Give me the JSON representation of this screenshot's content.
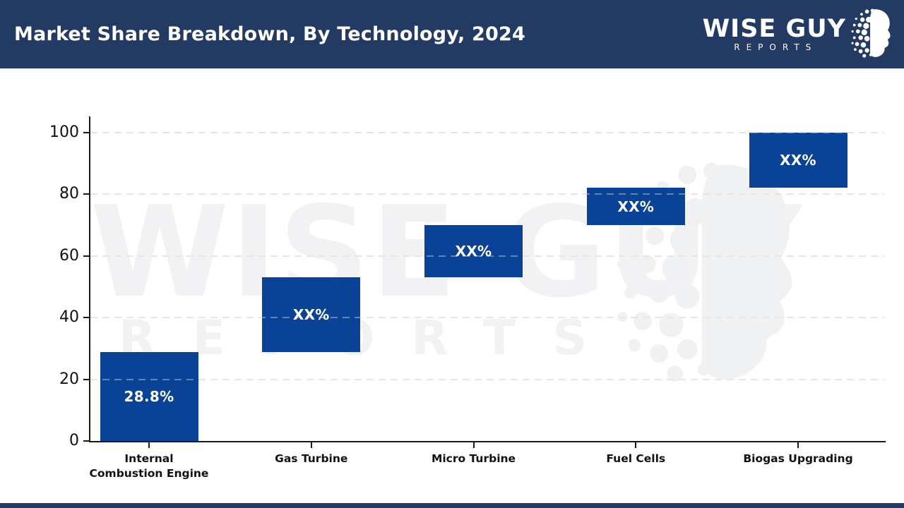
{
  "header": {
    "title": "Market Share Breakdown, By Technology, 2024",
    "logo": {
      "line1": "WISE GUY",
      "line2": "REPORTS"
    }
  },
  "watermark": {
    "line1": "WISE GUY",
    "line2": "REPORTS"
  },
  "chart_data": {
    "type": "bar",
    "subtype": "waterfall",
    "title": "Market Share Breakdown, By Technology, 2024",
    "categories": [
      "Internal Combustion Engine",
      "Gas Turbine",
      "Micro Turbine",
      "Fuel Cells",
      "Biogas Upgrading"
    ],
    "tick_labels": [
      "Internal\nCombustion Engine",
      "Gas Turbine",
      "Micro Turbine",
      "Fuel Cells",
      "Biogas Upgrading"
    ],
    "segments": [
      {
        "category": "Internal Combustion Engine",
        "start": 0,
        "end": 28.8,
        "label": "28.8%"
      },
      {
        "category": "Gas Turbine",
        "start": 28.8,
        "end": 53,
        "label": "XX%"
      },
      {
        "category": "Micro Turbine",
        "start": 53,
        "end": 70,
        "label": "XX%"
      },
      {
        "category": "Fuel Cells",
        "start": 70,
        "end": 82,
        "label": "XX%"
      },
      {
        "category": "Biogas Upgrading",
        "start": 82,
        "end": 100,
        "label": "XX%"
      }
    ],
    "yticks": [
      0,
      20,
      40,
      60,
      80,
      100
    ],
    "ylim": [
      0,
      104
    ],
    "xlabel": "",
    "ylabel": "",
    "grid": "horizontal-dashed",
    "legend": "none",
    "bar_color": "#0a4396",
    "bar_label_color": "#ffffff"
  },
  "colors": {
    "header_bg": "#233a63",
    "footer_bg": "#233a63",
    "bar": "#0a4396",
    "grid": "#d9d9d9",
    "axis": "#1a1a1a",
    "watermark": "#f2f2f4",
    "title_text": "#ffffff"
  }
}
